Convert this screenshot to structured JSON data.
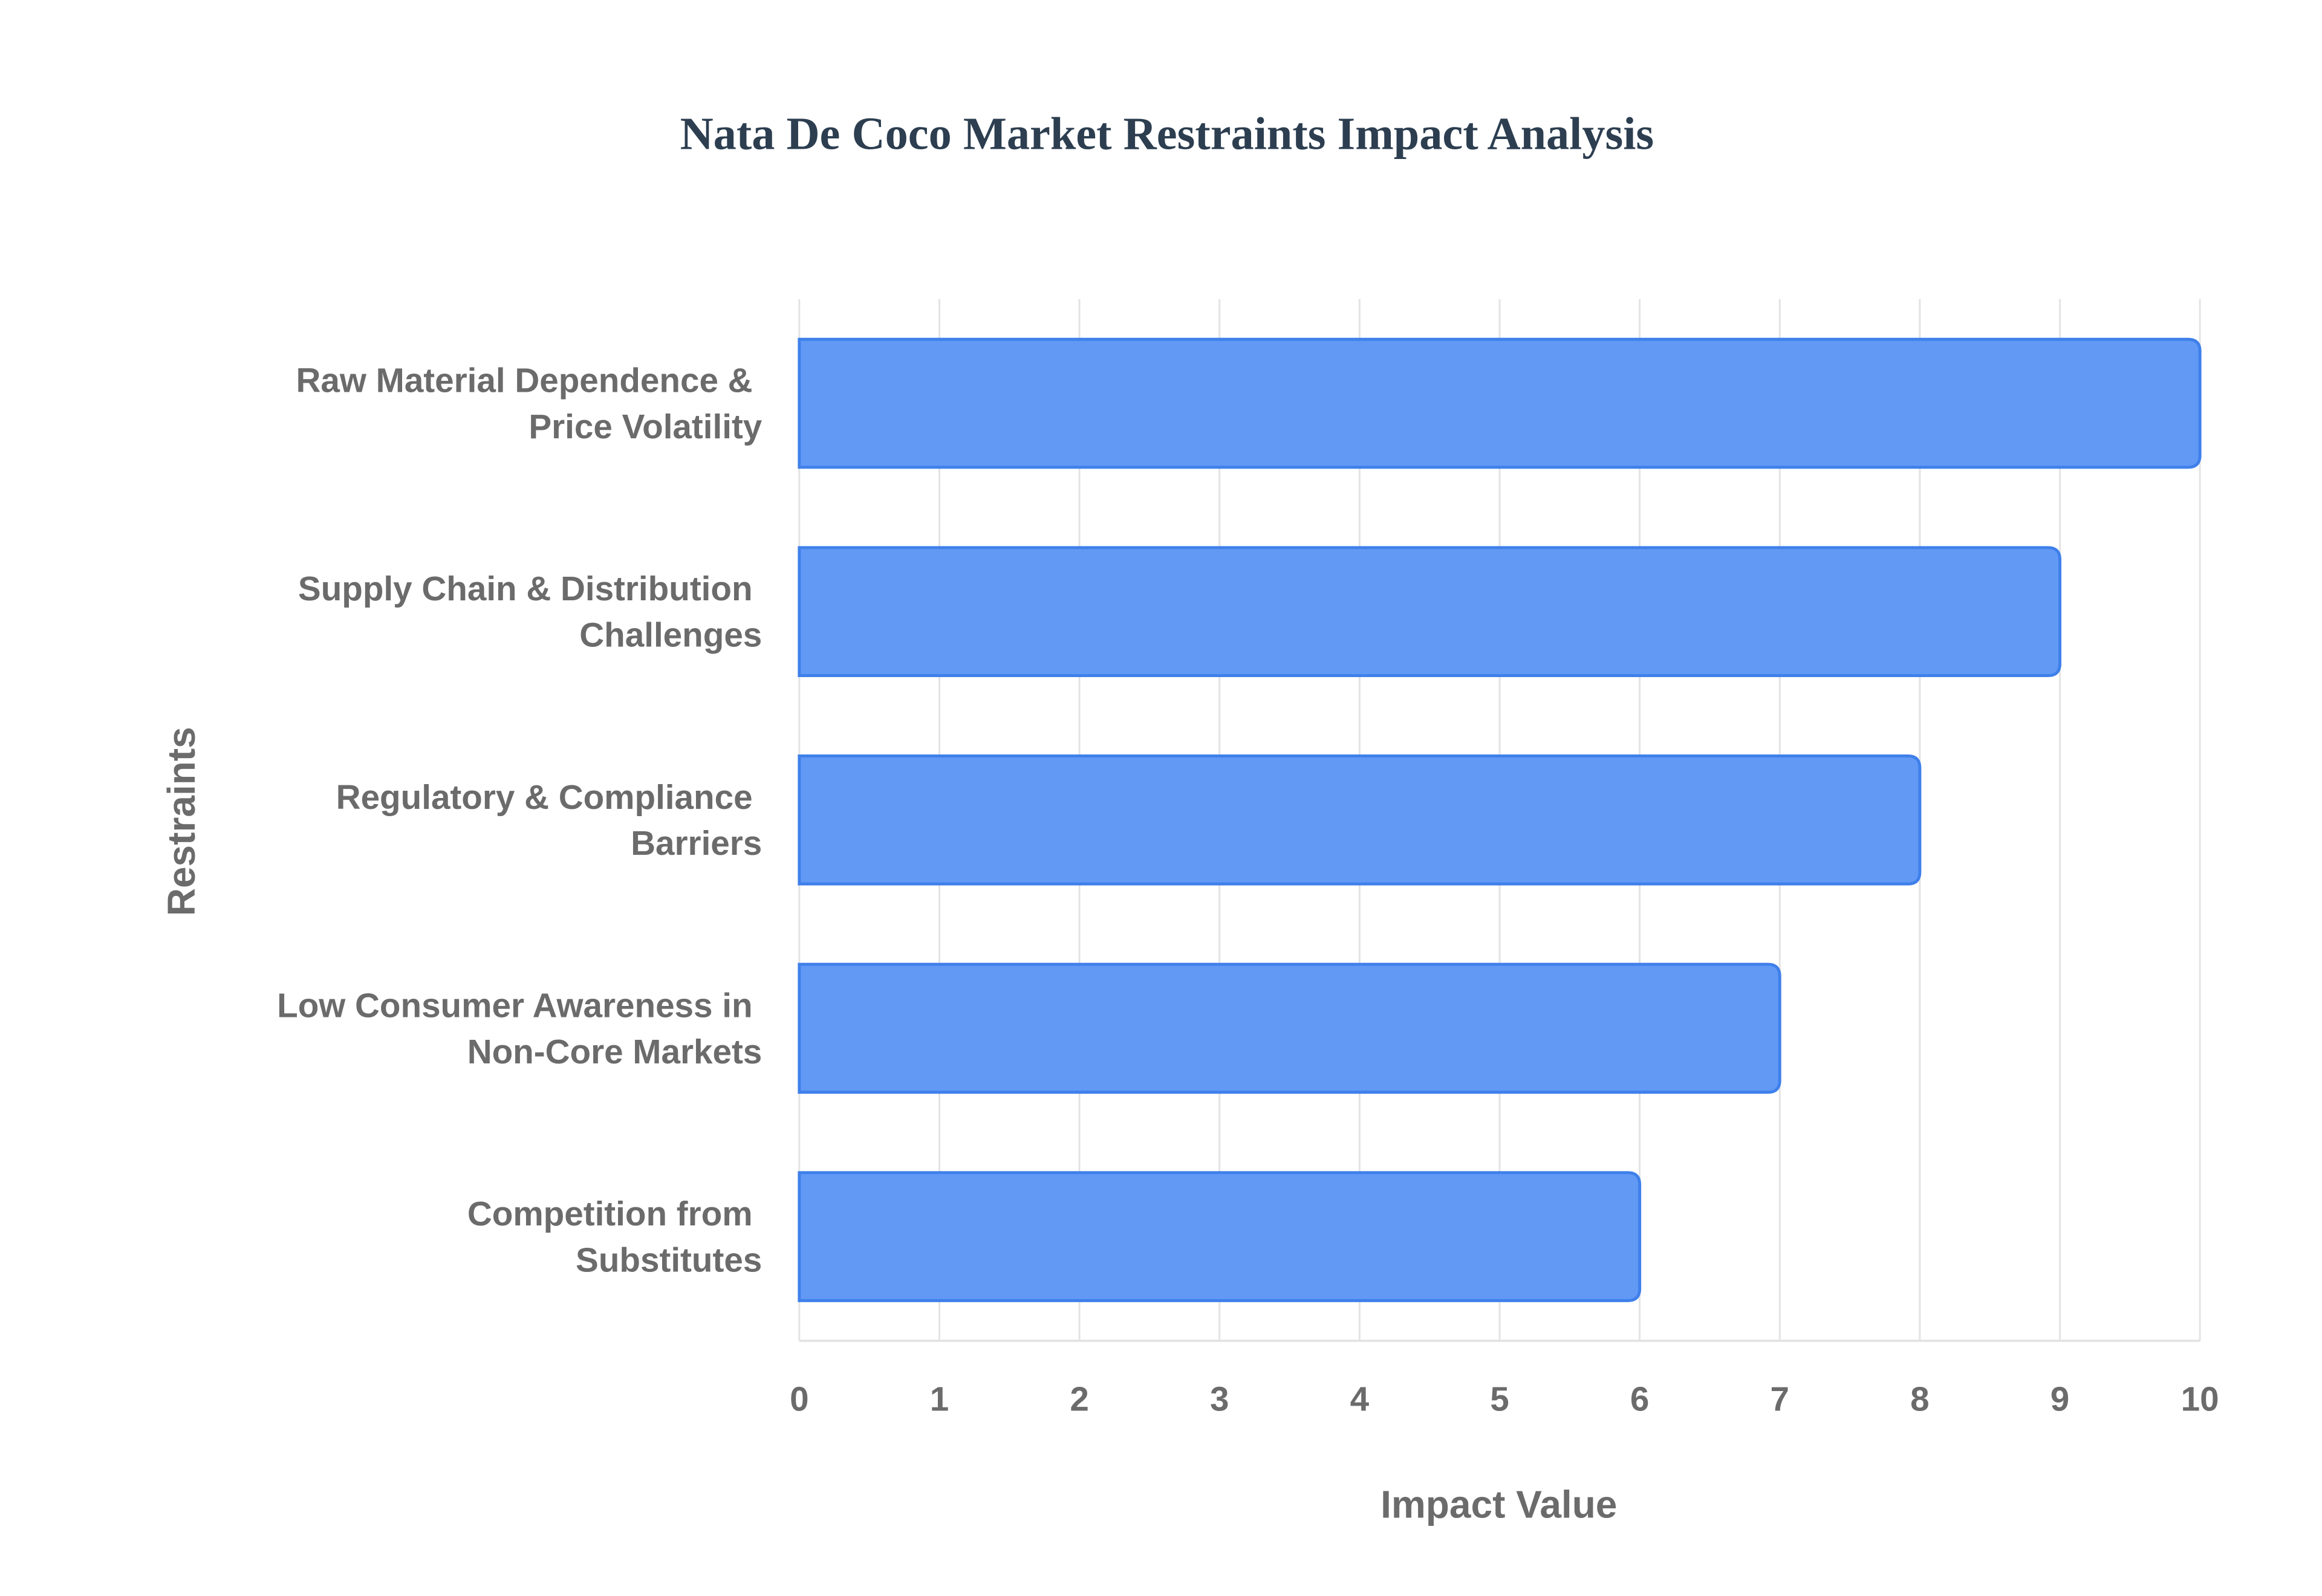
{
  "chart_data": {
    "type": "bar",
    "orientation": "horizontal",
    "title": "Nata De Coco Market Restraints Impact Analysis",
    "xlabel": "Impact Value",
    "ylabel": "Restraints",
    "categories": [
      "Raw Material Dependence & Price Volatility",
      "Supply Chain & Distribution Challenges",
      "Regulatory & Compliance Barriers",
      "Low Consumer Awareness in Non-Core Markets",
      "Competition from Substitutes"
    ],
    "values": [
      10,
      9,
      8,
      7,
      6
    ],
    "color": "#6199f5",
    "xlim": [
      0,
      10
    ],
    "xticks": [
      0,
      1,
      2,
      3,
      4,
      5,
      6,
      7,
      8,
      9,
      10
    ],
    "grid": true
  }
}
